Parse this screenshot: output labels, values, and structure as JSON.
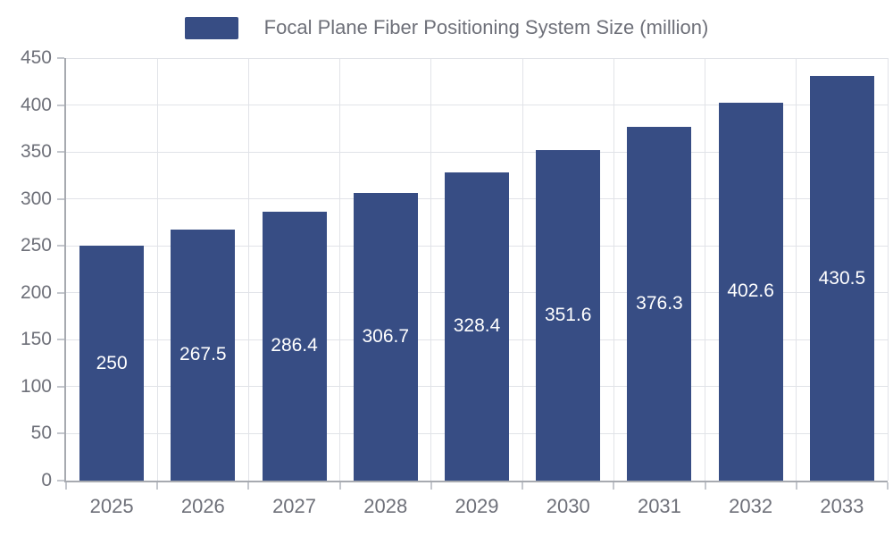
{
  "legend": {
    "label": "Focal Plane Fiber Positioning System Size (million)"
  },
  "colors": {
    "bar": "#374D84",
    "bar_label": "#FFFFFF",
    "axis_text": "#6E7079",
    "grid_line": "#E1E3E8",
    "axis_line": "#A7AAB0",
    "tick_line": "#C4C7CD",
    "background": "#FFFFFF"
  },
  "chart_data": {
    "type": "bar",
    "title": "Focal Plane Fiber Positioning System Size (million)",
    "series_name": "Focal Plane Fiber Positioning System Size (million)",
    "categories": [
      "2025",
      "2026",
      "2027",
      "2028",
      "2029",
      "2030",
      "2031",
      "2032",
      "2033"
    ],
    "values": [
      250,
      267.5,
      286.4,
      306.7,
      328.4,
      351.6,
      376.3,
      402.6,
      430.5
    ],
    "value_labels": [
      "250",
      "267.5",
      "286.4",
      "306.7",
      "328.4",
      "351.6",
      "376.3",
      "402.6",
      "430.5"
    ],
    "xlabel": "",
    "ylabel": "",
    "ylim": [
      0,
      450
    ],
    "yticks": [
      0,
      50,
      100,
      150,
      200,
      250,
      300,
      350,
      400,
      450
    ],
    "grid": true,
    "legend_position": "top-center",
    "value_label_position": "inside-center"
  }
}
